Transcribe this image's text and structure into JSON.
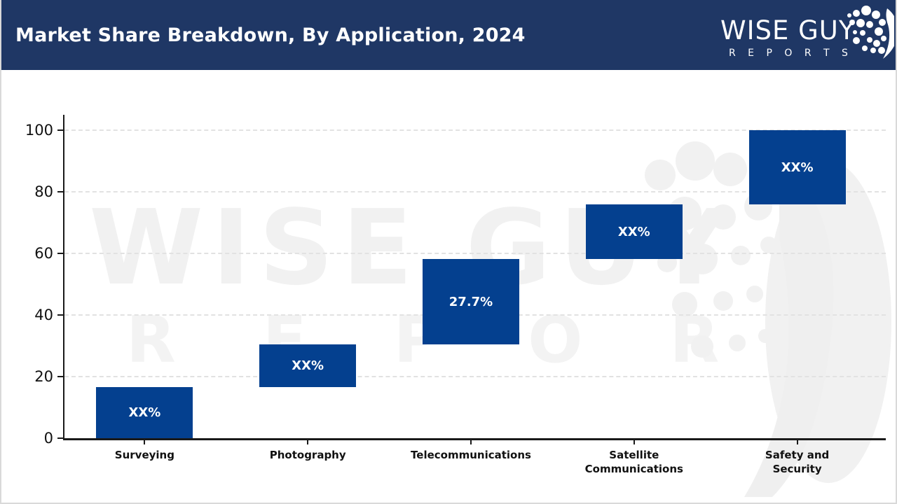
{
  "header": {
    "title": "Market Share Breakdown, By Application, 2024",
    "bg_color": "#1F3765",
    "logo": {
      "line1": "WISE GUY",
      "line2": "R E P O R T S"
    }
  },
  "watermark": {
    "line1": "WISE GUY",
    "line2": "R E P O R T S"
  },
  "chart_data": {
    "type": "bar",
    "subtype": "waterfall",
    "title": "Market Share Breakdown, By Application, 2024",
    "xlabel": "",
    "ylabel": "",
    "ylim": [
      0,
      105
    ],
    "yticks": [
      0,
      20,
      40,
      60,
      80,
      100
    ],
    "grid": "horizontal-dashed",
    "legend": "none",
    "bar_color": "#04408F",
    "bar_label_color": "#ffffff",
    "categories": [
      "Surveying",
      "Photography",
      "Telecommunications",
      "Satellite\nCommunications",
      "Safety and\nSecurity"
    ],
    "values": [
      16.7,
      13.7,
      27.7,
      17.8,
      24.1
    ],
    "segments": [
      {
        "category": "Surveying",
        "start": 0,
        "end": 16.7,
        "label": "XX%"
      },
      {
        "category": "Photography",
        "start": 16.7,
        "end": 30.4,
        "label": "XX%"
      },
      {
        "category": "Telecommunications",
        "start": 30.4,
        "end": 58.1,
        "label": "27.7%"
      },
      {
        "category": "Satellite Communications",
        "start": 58.1,
        "end": 75.9,
        "label": "XX%"
      },
      {
        "category": "Safety and Security",
        "start": 75.9,
        "end": 100,
        "label": "XX%"
      }
    ]
  }
}
